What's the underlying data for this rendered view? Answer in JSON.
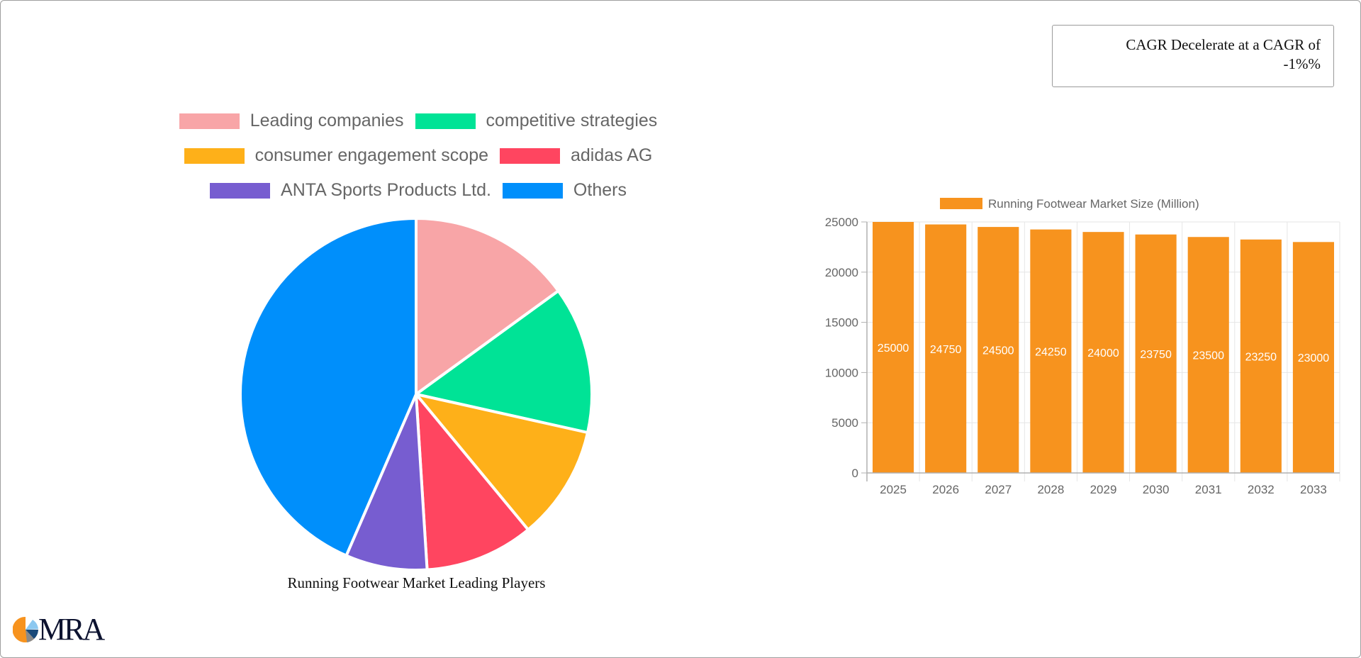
{
  "cagr": {
    "line1": "CAGR Decelerate at a CAGR of",
    "line2": "-1%%"
  },
  "pie": {
    "title": "Running Footwear Market Leading Players",
    "legend": [
      {
        "label": "Leading companies",
        "color": "#f8a5a7"
      },
      {
        "label": "competitive strategies",
        "color": "#00e396"
      },
      {
        "label": "consumer engagement scope",
        "color": "#feb019"
      },
      {
        "label": "adidas AG",
        "color": "#ff4560"
      },
      {
        "label": "ANTA Sports Products Ltd.",
        "color": "#775dd0"
      },
      {
        "label": "Others",
        "color": "#008ffb"
      }
    ]
  },
  "bar": {
    "legend_label": "Running Footwear Market Size (Million)",
    "color": "#f7931e"
  },
  "logo": {
    "text": "MRA"
  },
  "chart_data": [
    {
      "type": "pie",
      "title": "Running Footwear Market Leading Players",
      "categories": [
        "Leading companies",
        "competitive strategies",
        "consumer engagement scope",
        "adidas AG",
        "ANTA Sports Products Ltd.",
        "Others"
      ],
      "values": [
        15,
        13.5,
        10.5,
        10,
        7.5,
        43.5
      ],
      "colors": [
        "#f8a5a7",
        "#00e396",
        "#feb019",
        "#ff4560",
        "#775dd0",
        "#008ffb"
      ],
      "legend_position": "top"
    },
    {
      "type": "bar",
      "title": "",
      "legend": [
        "Running Footwear Market Size (Million)"
      ],
      "categories": [
        "2025",
        "2026",
        "2027",
        "2028",
        "2029",
        "2030",
        "2031",
        "2032",
        "2033"
      ],
      "values": [
        25000,
        24750,
        24500,
        24250,
        24000,
        23750,
        23500,
        23250,
        23000
      ],
      "xlabel": "",
      "ylabel": "",
      "ylim": [
        0,
        25000
      ],
      "yticks": [
        0,
        5000,
        10000,
        15000,
        20000,
        25000
      ],
      "grid": true,
      "data_labels": true,
      "legend_position": "top"
    }
  ]
}
